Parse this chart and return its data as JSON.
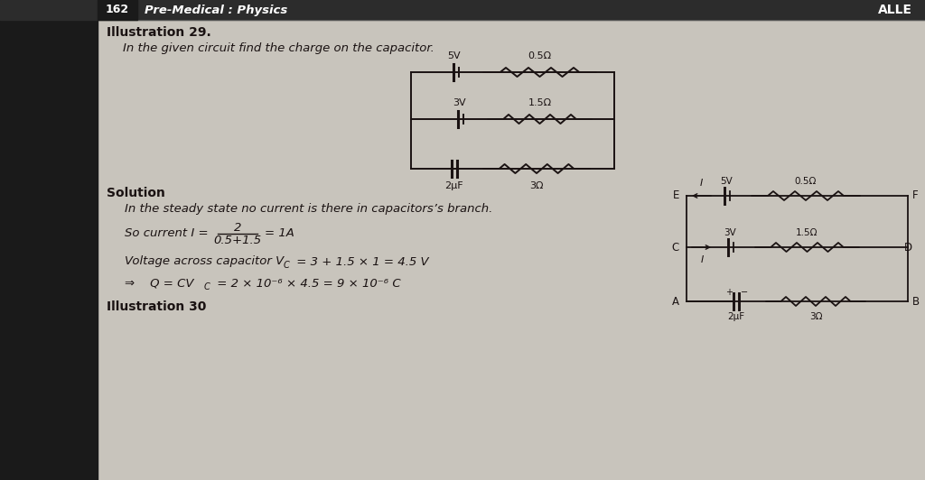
{
  "bg_left": "#1a1a1a",
  "page_bg": "#c8c4bc",
  "header_bg": "#c8c4bc",
  "header_bar_color": "#3a3a3a",
  "header_text": "162",
  "header_subtitle": "Pre-Medical : Physics",
  "header_right": "ALLE",
  "title": "Illustration 29.",
  "problem_text": "In the given circuit find the charge on the capacitor.",
  "solution_header": "Solution",
  "solution_line1": "In the steady state no current is there in capacitors’s branch.",
  "fraction_num": "2",
  "fraction_den": "0.5+1.5",
  "footer_text": "Illustration 30",
  "text_color": "#1a1212",
  "circuit1": {
    "row1_label_v": "5V",
    "row1_label_r": "0.5Ω",
    "row2_label_v": "3V",
    "row2_label_r": "1.5Ω",
    "row3_label_c": "2μF",
    "row3_label_r": "3Ω"
  },
  "circuit2": {
    "node_A": "A",
    "node_B": "B",
    "node_C": "C",
    "node_D": "D",
    "node_E": "E",
    "node_F": "F",
    "label_I_top": "I",
    "label_I_mid": "I",
    "label_5V": "5V",
    "label_05": "0.5Ω",
    "label_3V": "3V",
    "label_15": "1.5Ω",
    "label_2uF": "2μF",
    "label_3ohm": "3Ω",
    "label_plus": "+",
    "label_minus": "−"
  }
}
